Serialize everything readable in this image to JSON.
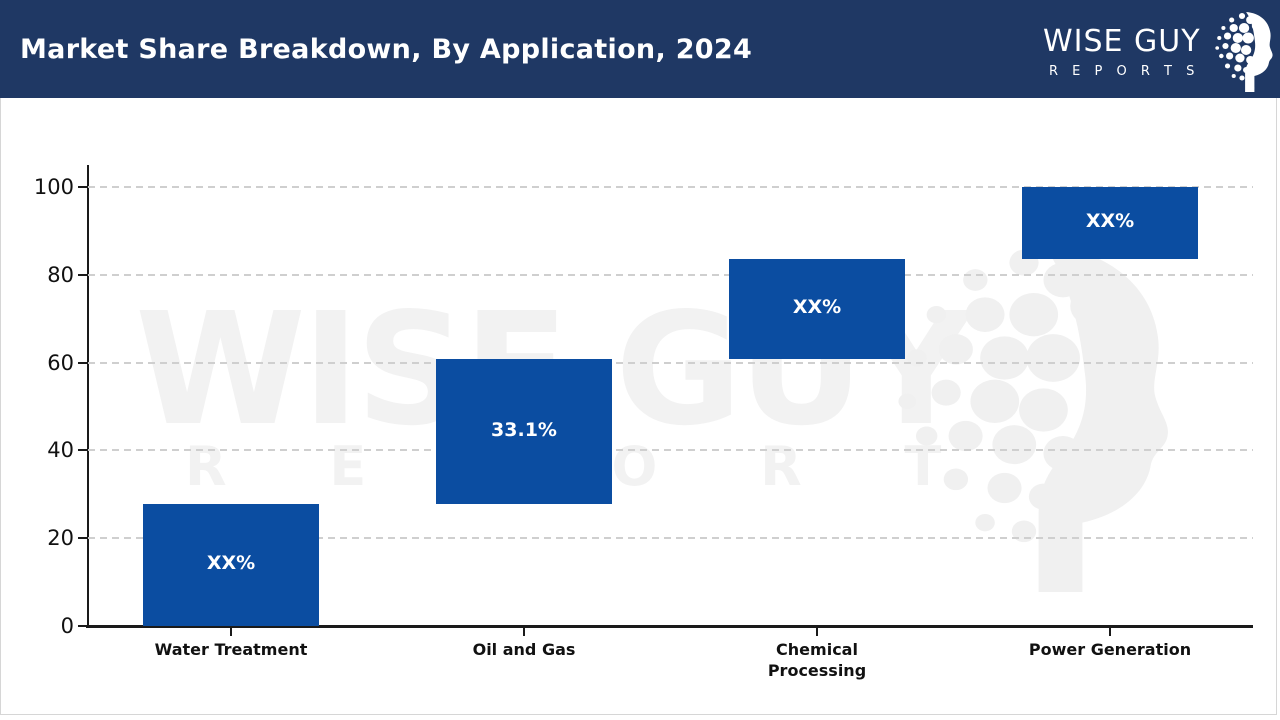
{
  "header": {
    "title": "Market Share Breakdown, By Application, 2024",
    "bg_color": "#1f3864",
    "logo": {
      "name": "WISE GUY",
      "tagline": "R E P O R T S"
    }
  },
  "watermark": {
    "line1": "WISE GUY",
    "line2": "R E P O R T S"
  },
  "chart_data": {
    "type": "bar",
    "variant": "waterfall",
    "title": "Market Share Breakdown, By Application, 2024",
    "categories": [
      "Water Treatment",
      "Oil and Gas",
      "Chemical Processing",
      "Power Generation"
    ],
    "values": [
      27.7,
      33.1,
      22.9,
      16.3
    ],
    "segments": [
      {
        "category": "Water Treatment",
        "start": 0,
        "end": 27.7,
        "label": "XX%"
      },
      {
        "category": "Oil and Gas",
        "start": 27.7,
        "end": 60.8,
        "label": "33.1%"
      },
      {
        "category": "Chemical Processing",
        "start": 60.8,
        "end": 83.7,
        "label": "XX%"
      },
      {
        "category": "Power Generation",
        "start": 83.7,
        "end": 100,
        "label": "XX%"
      }
    ],
    "y_ticks": [
      0,
      20,
      40,
      60,
      80,
      100
    ],
    "ylim": [
      0,
      105
    ],
    "xlabel": "",
    "ylabel": "",
    "grid": "horizontal-dashed",
    "legend": "none",
    "bar_color": "#0b4da1",
    "bar_label_color": "#ffffff",
    "axis_color": "#1a1a1a",
    "gridline_color": "#cfcfcf",
    "header_color": "#1f3864",
    "watermark_color": "#f2f2f2"
  }
}
